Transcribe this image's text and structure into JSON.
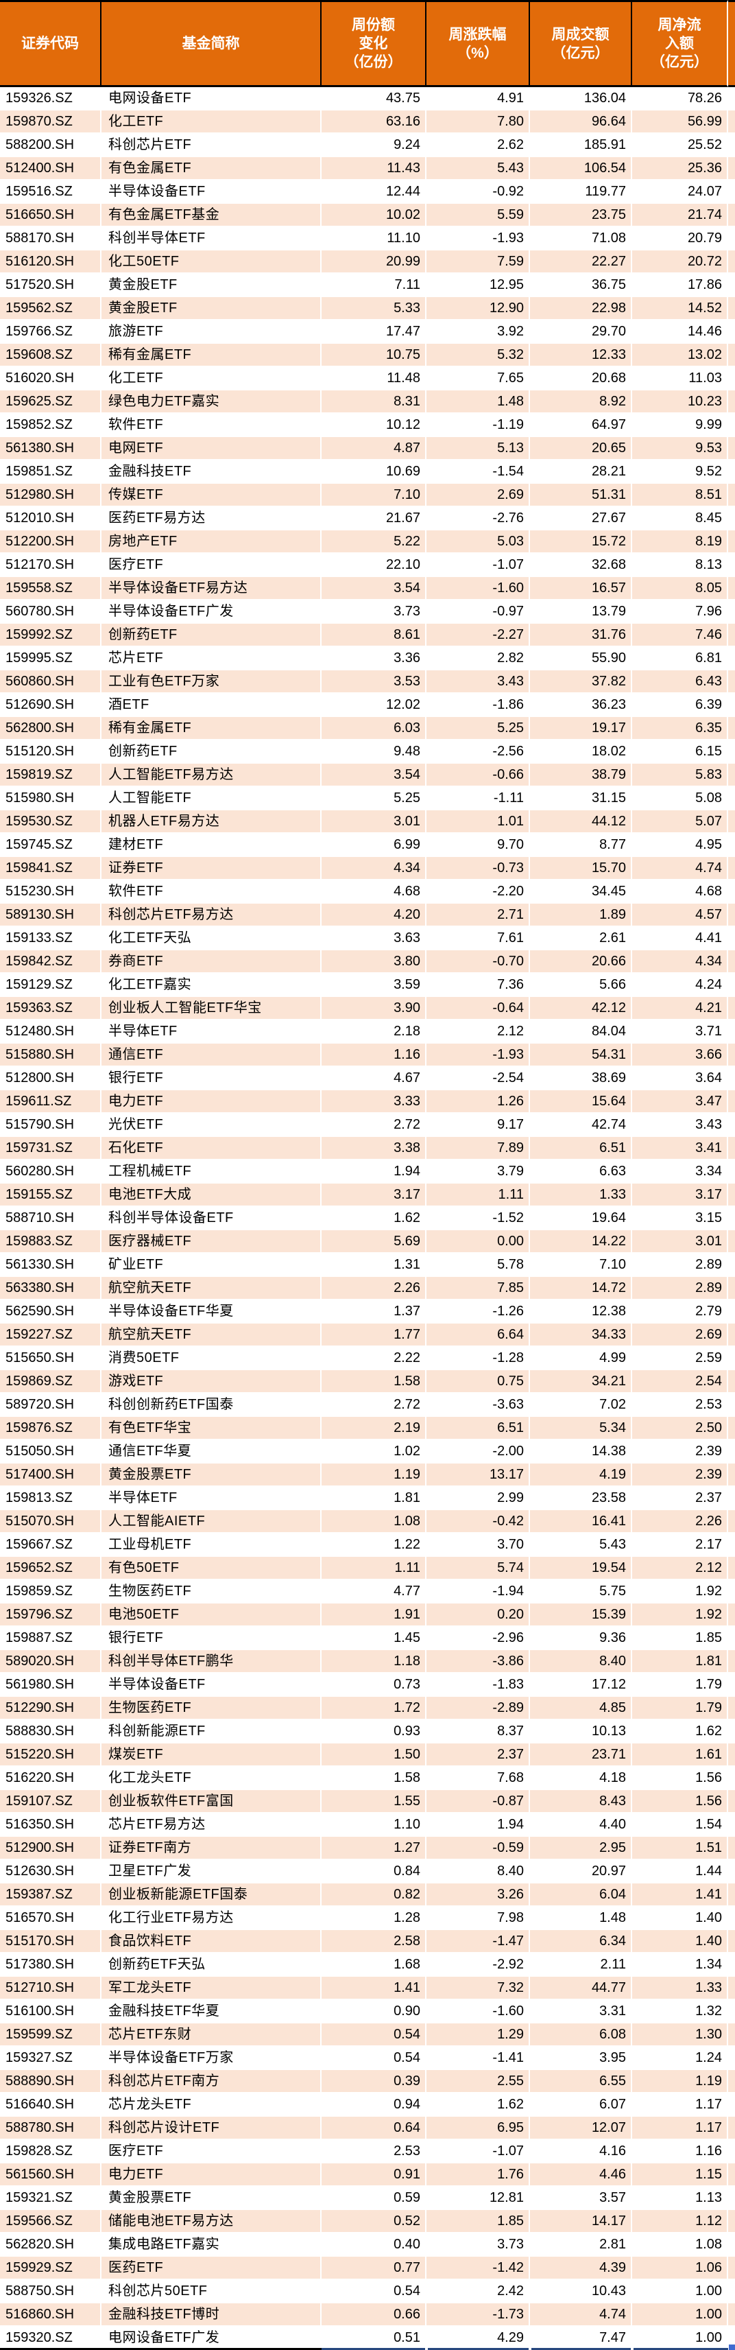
{
  "table": {
    "columns": [
      {
        "key": "code",
        "label": "证券代码"
      },
      {
        "key": "name",
        "label": "基金简称"
      },
      {
        "key": "share_change",
        "label": "周份额\n变化\n（亿份）"
      },
      {
        "key": "pct_change",
        "label": "周涨跌幅\n（%）"
      },
      {
        "key": "turnover",
        "label": "周成交额\n（亿元）"
      },
      {
        "key": "net_inflow",
        "label": "周净流\n入额\n（亿元）"
      }
    ],
    "rows": [
      [
        "159326.SZ",
        "电网设备ETF",
        "43.75",
        "4.91",
        "136.04",
        "78.26"
      ],
      [
        "159870.SZ",
        "化工ETF",
        "63.16",
        "7.80",
        "96.64",
        "56.99"
      ],
      [
        "588200.SH",
        "科创芯片ETF",
        "9.24",
        "2.62",
        "185.91",
        "25.52"
      ],
      [
        "512400.SH",
        "有色金属ETF",
        "11.43",
        "5.43",
        "106.54",
        "25.36"
      ],
      [
        "159516.SZ",
        "半导体设备ETF",
        "12.44",
        "-0.92",
        "119.77",
        "24.07"
      ],
      [
        "516650.SH",
        "有色金属ETF基金",
        "10.02",
        "5.59",
        "23.75",
        "21.74"
      ],
      [
        "588170.SH",
        "科创半导体ETF",
        "11.10",
        "-1.93",
        "71.08",
        "20.79"
      ],
      [
        "516120.SH",
        "化工50ETF",
        "20.99",
        "7.59",
        "22.27",
        "20.72"
      ],
      [
        "517520.SH",
        "黄金股ETF",
        "7.11",
        "12.95",
        "36.75",
        "17.86"
      ],
      [
        "159562.SZ",
        "黄金股ETF",
        "5.33",
        "12.90",
        "22.98",
        "14.52"
      ],
      [
        "159766.SZ",
        "旅游ETF",
        "17.47",
        "3.92",
        "29.70",
        "14.46"
      ],
      [
        "159608.SZ",
        "稀有金属ETF",
        "10.75",
        "5.32",
        "12.33",
        "13.02"
      ],
      [
        "516020.SH",
        "化工ETF",
        "11.48",
        "7.65",
        "20.68",
        "11.03"
      ],
      [
        "159625.SZ",
        "绿色电力ETF嘉实",
        "8.31",
        "1.48",
        "8.92",
        "10.23"
      ],
      [
        "159852.SZ",
        "软件ETF",
        "10.12",
        "-1.19",
        "64.97",
        "9.99"
      ],
      [
        "561380.SH",
        "电网ETF",
        "4.87",
        "5.13",
        "20.65",
        "9.53"
      ],
      [
        "159851.SZ",
        "金融科技ETF",
        "10.69",
        "-1.54",
        "28.21",
        "9.52"
      ],
      [
        "512980.SH",
        "传媒ETF",
        "7.10",
        "2.69",
        "51.31",
        "8.51"
      ],
      [
        "512010.SH",
        "医药ETF易方达",
        "21.67",
        "-2.76",
        "27.67",
        "8.45"
      ],
      [
        "512200.SH",
        "房地产ETF",
        "5.22",
        "5.03",
        "15.72",
        "8.19"
      ],
      [
        "512170.SH",
        "医疗ETF",
        "22.10",
        "-1.07",
        "32.68",
        "8.13"
      ],
      [
        "159558.SZ",
        "半导体设备ETF易方达",
        "3.54",
        "-1.60",
        "16.57",
        "8.05"
      ],
      [
        "560780.SH",
        "半导体设备ETF广发",
        "3.73",
        "-0.97",
        "13.79",
        "7.96"
      ],
      [
        "159992.SZ",
        "创新药ETF",
        "8.61",
        "-2.27",
        "31.76",
        "7.46"
      ],
      [
        "159995.SZ",
        "芯片ETF",
        "3.36",
        "2.82",
        "55.90",
        "6.81"
      ],
      [
        "560860.SH",
        "工业有色ETF万家",
        "3.53",
        "3.43",
        "37.82",
        "6.43"
      ],
      [
        "512690.SH",
        "酒ETF",
        "12.02",
        "-1.86",
        "36.23",
        "6.39"
      ],
      [
        "562800.SH",
        "稀有金属ETF",
        "6.03",
        "5.25",
        "19.17",
        "6.35"
      ],
      [
        "515120.SH",
        "创新药ETF",
        "9.48",
        "-2.56",
        "18.02",
        "6.15"
      ],
      [
        "159819.SZ",
        "人工智能ETF易方达",
        "3.54",
        "-0.66",
        "38.79",
        "5.83"
      ],
      [
        "515980.SH",
        "人工智能ETF",
        "5.25",
        "-1.11",
        "31.15",
        "5.08"
      ],
      [
        "159530.SZ",
        "机器人ETF易方达",
        "3.01",
        "1.01",
        "44.12",
        "5.07"
      ],
      [
        "159745.SZ",
        "建材ETF",
        "6.99",
        "9.70",
        "8.77",
        "4.95"
      ],
      [
        "159841.SZ",
        "证券ETF",
        "4.34",
        "-0.73",
        "15.70",
        "4.74"
      ],
      [
        "515230.SH",
        "软件ETF",
        "4.68",
        "-2.20",
        "34.45",
        "4.68"
      ],
      [
        "589130.SH",
        "科创芯片ETF易方达",
        "4.20",
        "2.71",
        "1.89",
        "4.57"
      ],
      [
        "159133.SZ",
        "化工ETF天弘",
        "3.63",
        "7.61",
        "2.61",
        "4.41"
      ],
      [
        "159842.SZ",
        "券商ETF",
        "3.80",
        "-0.70",
        "20.66",
        "4.34"
      ],
      [
        "159129.SZ",
        "化工ETF嘉实",
        "3.59",
        "7.36",
        "5.66",
        "4.24"
      ],
      [
        "159363.SZ",
        "创业板人工智能ETF华宝",
        "3.90",
        "-0.64",
        "42.12",
        "4.21"
      ],
      [
        "512480.SH",
        "半导体ETF",
        "2.18",
        "2.12",
        "84.04",
        "3.71"
      ],
      [
        "515880.SH",
        "通信ETF",
        "1.16",
        "-1.93",
        "54.31",
        "3.66"
      ],
      [
        "512800.SH",
        "银行ETF",
        "4.67",
        "-2.54",
        "38.69",
        "3.64"
      ],
      [
        "159611.SZ",
        "电力ETF",
        "3.33",
        "1.26",
        "15.64",
        "3.47"
      ],
      [
        "515790.SH",
        "光伏ETF",
        "2.72",
        "9.17",
        "42.74",
        "3.43"
      ],
      [
        "159731.SZ",
        "石化ETF",
        "3.38",
        "7.89",
        "6.51",
        "3.41"
      ],
      [
        "560280.SH",
        "工程机械ETF",
        "1.94",
        "3.79",
        "6.63",
        "3.34"
      ],
      [
        "159155.SZ",
        "电池ETF大成",
        "3.17",
        "1.11",
        "1.33",
        "3.17"
      ],
      [
        "588710.SH",
        "科创半导体设备ETF",
        "1.62",
        "-1.52",
        "19.64",
        "3.15"
      ],
      [
        "159883.SZ",
        "医疗器械ETF",
        "5.69",
        "0.00",
        "14.22",
        "3.01"
      ],
      [
        "561330.SH",
        "矿业ETF",
        "1.31",
        "5.78",
        "7.10",
        "2.89"
      ],
      [
        "563380.SH",
        "航空航天ETF",
        "2.26",
        "7.85",
        "14.72",
        "2.89"
      ],
      [
        "562590.SH",
        "半导体设备ETF华夏",
        "1.37",
        "-1.26",
        "12.38",
        "2.79"
      ],
      [
        "159227.SZ",
        "航空航天ETF",
        "1.77",
        "6.64",
        "34.33",
        "2.69"
      ],
      [
        "515650.SH",
        "消费50ETF",
        "2.22",
        "-1.28",
        "4.99",
        "2.59"
      ],
      [
        "159869.SZ",
        "游戏ETF",
        "1.58",
        "0.75",
        "34.21",
        "2.54"
      ],
      [
        "589720.SH",
        "科创创新药ETF国泰",
        "2.72",
        "-3.63",
        "7.02",
        "2.53"
      ],
      [
        "159876.SZ",
        "有色ETF华宝",
        "2.19",
        "6.51",
        "5.34",
        "2.50"
      ],
      [
        "515050.SH",
        "通信ETF华夏",
        "1.02",
        "-2.00",
        "14.38",
        "2.39"
      ],
      [
        "517400.SH",
        "黄金股票ETF",
        "1.19",
        "13.17",
        "4.19",
        "2.39"
      ],
      [
        "159813.SZ",
        "半导体ETF",
        "1.81",
        "2.99",
        "23.58",
        "2.37"
      ],
      [
        "515070.SH",
        "人工智能AIETF",
        "1.08",
        "-0.42",
        "16.41",
        "2.26"
      ],
      [
        "159667.SZ",
        "工业母机ETF",
        "1.22",
        "3.70",
        "5.43",
        "2.17"
      ],
      [
        "159652.SZ",
        "有色50ETF",
        "1.11",
        "5.74",
        "19.54",
        "2.12"
      ],
      [
        "159859.SZ",
        "生物医药ETF",
        "4.77",
        "-1.94",
        "5.75",
        "1.92"
      ],
      [
        "159796.SZ",
        "电池50ETF",
        "1.91",
        "0.20",
        "15.39",
        "1.92"
      ],
      [
        "159887.SZ",
        "银行ETF",
        "1.45",
        "-2.96",
        "9.36",
        "1.85"
      ],
      [
        "589020.SH",
        "科创半导体ETF鹏华",
        "1.18",
        "-3.86",
        "8.40",
        "1.81"
      ],
      [
        "561980.SH",
        "半导体设备ETF",
        "0.73",
        "-1.83",
        "17.12",
        "1.79"
      ],
      [
        "512290.SH",
        "生物医药ETF",
        "1.72",
        "-2.89",
        "4.85",
        "1.79"
      ],
      [
        "588830.SH",
        "科创新能源ETF",
        "0.93",
        "8.37",
        "10.13",
        "1.62"
      ],
      [
        "515220.SH",
        "煤炭ETF",
        "1.50",
        "2.37",
        "23.71",
        "1.61"
      ],
      [
        "516220.SH",
        "化工龙头ETF",
        "1.58",
        "7.68",
        "4.18",
        "1.56"
      ],
      [
        "159107.SZ",
        "创业板软件ETF富国",
        "1.55",
        "-0.87",
        "8.43",
        "1.56"
      ],
      [
        "516350.SH",
        "芯片ETF易方达",
        "1.10",
        "1.94",
        "4.40",
        "1.54"
      ],
      [
        "512900.SH",
        "证券ETF南方",
        "1.27",
        "-0.59",
        "2.95",
        "1.51"
      ],
      [
        "512630.SH",
        "卫星ETF广发",
        "0.84",
        "8.40",
        "20.97",
        "1.44"
      ],
      [
        "159387.SZ",
        "创业板新能源ETF国泰",
        "0.82",
        "3.26",
        "6.04",
        "1.41"
      ],
      [
        "516570.SH",
        "化工行业ETF易方达",
        "1.28",
        "7.98",
        "1.48",
        "1.40"
      ],
      [
        "515170.SH",
        "食品饮料ETF",
        "2.58",
        "-1.47",
        "6.34",
        "1.40"
      ],
      [
        "517380.SH",
        "创新药ETF天弘",
        "1.68",
        "-2.92",
        "2.11",
        "1.34"
      ],
      [
        "512710.SH",
        "军工龙头ETF",
        "1.41",
        "7.32",
        "44.77",
        "1.33"
      ],
      [
        "516100.SH",
        "金融科技ETF华夏",
        "0.90",
        "-1.60",
        "3.31",
        "1.32"
      ],
      [
        "159599.SZ",
        "芯片ETF东财",
        "0.54",
        "1.29",
        "6.08",
        "1.30"
      ],
      [
        "159327.SZ",
        "半导体设备ETF万家",
        "0.54",
        "-1.41",
        "3.95",
        "1.24"
      ],
      [
        "588890.SH",
        "科创芯片ETF南方",
        "0.39",
        "2.55",
        "6.55",
        "1.19"
      ],
      [
        "516640.SH",
        "芯片龙头ETF",
        "0.94",
        "1.62",
        "6.07",
        "1.17"
      ],
      [
        "588780.SH",
        "科创芯片设计ETF",
        "0.64",
        "6.95",
        "12.07",
        "1.17"
      ],
      [
        "159828.SZ",
        "医疗ETF",
        "2.53",
        "-1.07",
        "4.16",
        "1.16"
      ],
      [
        "561560.SH",
        "电力ETF",
        "0.91",
        "1.76",
        "4.46",
        "1.15"
      ],
      [
        "159321.SZ",
        "黄金股票ETF",
        "0.59",
        "12.81",
        "3.57",
        "1.13"
      ],
      [
        "159566.SZ",
        "储能电池ETF易方达",
        "0.52",
        "1.85",
        "14.17",
        "1.12"
      ],
      [
        "562820.SH",
        "集成电路ETF嘉实",
        "0.40",
        "3.73",
        "2.81",
        "1.08"
      ],
      [
        "159929.SZ",
        "医药ETF",
        "0.77",
        "-1.42",
        "4.39",
        "1.06"
      ],
      [
        "588750.SH",
        "科创芯片50ETF",
        "0.54",
        "2.42",
        "10.43",
        "1.00"
      ],
      [
        "516860.SH",
        "金融科技ETF博时",
        "0.66",
        "-1.73",
        "4.74",
        "1.00"
      ],
      [
        "159320.SZ",
        "电网设备ETF广发",
        "0.51",
        "4.29",
        "7.47",
        "1.00"
      ]
    ]
  },
  "colors": {
    "header_bg": "#E26B0A",
    "header_text": "#FFFFFF",
    "row_white": "#FFFFFF",
    "row_peach": "#FBE4D5",
    "grid_line": "#FFFFFF",
    "header_border": "#000000",
    "bottom_border_black": "#000000",
    "selection_border_blue": "#26477D",
    "selection_handle_blue": "#3F6BD0"
  }
}
